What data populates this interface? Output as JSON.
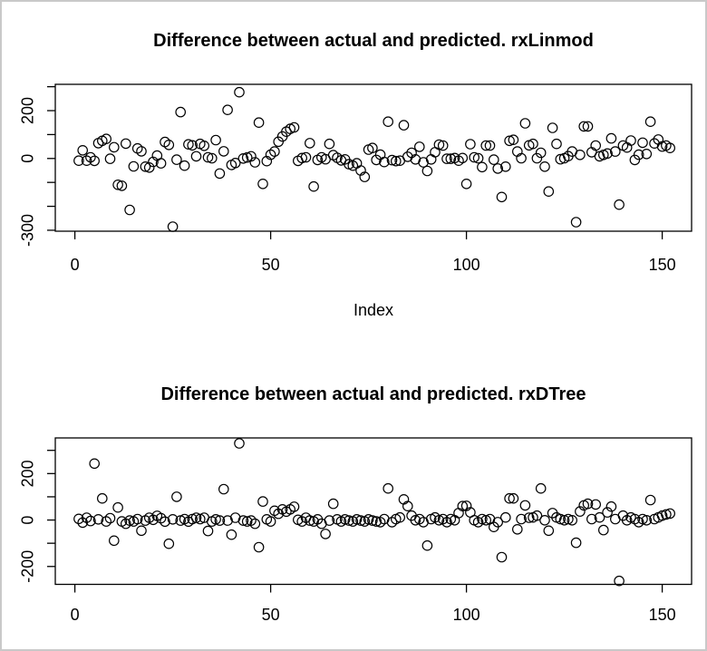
{
  "page": {
    "background_color": "#ffffff",
    "frame_border_color": "#c9c9c9",
    "point_color": "#000000",
    "axis_color": "#000000"
  },
  "chart_data": [
    {
      "type": "scatter",
      "title": "Difference between actual and predicted. rxLinmod",
      "xlabel": "Index",
      "ylabel": "",
      "marker": "open-circle",
      "grid": false,
      "legend": null,
      "xlim": [
        -5,
        157.5
      ],
      "ylim": [
        -304,
        310
      ],
      "x_tick_values": [
        0,
        50,
        100,
        150
      ],
      "x_tick_labels": [
        "0",
        "50",
        "100",
        "150"
      ],
      "y_tick_values": [
        300,
        200,
        100,
        0,
        -100,
        -200,
        -300
      ],
      "y_tick_labels": [
        "",
        "200",
        "",
        "0",
        "",
        "",
        "-300"
      ],
      "points": [
        [
          1,
          -9
        ],
        [
          2,
          34
        ],
        [
          3,
          -9
        ],
        [
          4,
          5
        ],
        [
          5,
          -10
        ],
        [
          6,
          64
        ],
        [
          7,
          74
        ],
        [
          8,
          82
        ],
        [
          9,
          -1
        ],
        [
          10,
          47
        ],
        [
          11,
          -110
        ],
        [
          12,
          -114
        ],
        [
          13,
          62
        ],
        [
          14,
          -215
        ],
        [
          15,
          -33
        ],
        [
          16,
          42
        ],
        [
          17,
          30
        ],
        [
          18,
          -34
        ],
        [
          19,
          -38
        ],
        [
          20,
          -14
        ],
        [
          21,
          12
        ],
        [
          22,
          -20
        ],
        [
          23,
          69
        ],
        [
          24,
          57
        ],
        [
          25,
          -285
        ],
        [
          26,
          -5
        ],
        [
          27,
          194
        ],
        [
          28,
          -30
        ],
        [
          29,
          59
        ],
        [
          30,
          55
        ],
        [
          31,
          9
        ],
        [
          32,
          61
        ],
        [
          33,
          53
        ],
        [
          34,
          5
        ],
        [
          35,
          1
        ],
        [
          36,
          77
        ],
        [
          37,
          -63
        ],
        [
          38,
          30
        ],
        [
          39,
          203
        ],
        [
          40,
          -27
        ],
        [
          41,
          -19
        ],
        [
          42,
          277
        ],
        [
          43,
          0
        ],
        [
          44,
          4
        ],
        [
          45,
          9
        ],
        [
          46,
          -16
        ],
        [
          47,
          150
        ],
        [
          48,
          -106
        ],
        [
          49,
          -11
        ],
        [
          50,
          16
        ],
        [
          51,
          29
        ],
        [
          52,
          70
        ],
        [
          53,
          92
        ],
        [
          54,
          112
        ],
        [
          55,
          124
        ],
        [
          56,
          130
        ],
        [
          57,
          -10
        ],
        [
          58,
          2
        ],
        [
          59,
          5
        ],
        [
          60,
          64
        ],
        [
          61,
          -117
        ],
        [
          62,
          -6
        ],
        [
          63,
          5
        ],
        [
          64,
          -3
        ],
        [
          65,
          61
        ],
        [
          66,
          14
        ],
        [
          67,
          3
        ],
        [
          68,
          -8
        ],
        [
          69,
          -4
        ],
        [
          70,
          -24
        ],
        [
          71,
          -30
        ],
        [
          72,
          -20
        ],
        [
          73,
          -50
        ],
        [
          74,
          -77
        ],
        [
          75,
          37
        ],
        [
          76,
          44
        ],
        [
          77,
          -6
        ],
        [
          78,
          16
        ],
        [
          79,
          -15
        ],
        [
          80,
          154
        ],
        [
          81,
          -7
        ],
        [
          82,
          -11
        ],
        [
          83,
          -9
        ],
        [
          84,
          139
        ],
        [
          85,
          7
        ],
        [
          86,
          24
        ],
        [
          87,
          -4
        ],
        [
          88,
          49
        ],
        [
          89,
          -16
        ],
        [
          90,
          -52
        ],
        [
          91,
          -4
        ],
        [
          92,
          26
        ],
        [
          93,
          58
        ],
        [
          94,
          54
        ],
        [
          95,
          -1
        ],
        [
          96,
          -1
        ],
        [
          97,
          2
        ],
        [
          98,
          -9
        ],
        [
          99,
          2
        ],
        [
          100,
          -106
        ],
        [
          101,
          60
        ],
        [
          102,
          5
        ],
        [
          103,
          1
        ],
        [
          104,
          -36
        ],
        [
          105,
          54
        ],
        [
          106,
          54
        ],
        [
          107,
          -5
        ],
        [
          108,
          -42
        ],
        [
          109,
          -161
        ],
        [
          110,
          -34
        ],
        [
          111,
          74
        ],
        [
          112,
          78
        ],
        [
          113,
          29
        ],
        [
          114,
          1
        ],
        [
          115,
          147
        ],
        [
          116,
          55
        ],
        [
          117,
          61
        ],
        [
          118,
          1
        ],
        [
          119,
          24
        ],
        [
          120,
          -34
        ],
        [
          121,
          -138
        ],
        [
          122,
          128
        ],
        [
          123,
          61
        ],
        [
          124,
          -3
        ],
        [
          125,
          1
        ],
        [
          126,
          10
        ],
        [
          127,
          29
        ],
        [
          128,
          -266
        ],
        [
          129,
          15
        ],
        [
          130,
          134
        ],
        [
          131,
          134
        ],
        [
          132,
          26
        ],
        [
          133,
          54
        ],
        [
          134,
          9
        ],
        [
          135,
          15
        ],
        [
          136,
          21
        ],
        [
          137,
          84
        ],
        [
          138,
          29
        ],
        [
          139,
          -193
        ],
        [
          140,
          54
        ],
        [
          141,
          46
        ],
        [
          142,
          75
        ],
        [
          143,
          -6
        ],
        [
          144,
          16
        ],
        [
          145,
          66
        ],
        [
          146,
          19
        ],
        [
          147,
          154
        ],
        [
          148,
          63
        ],
        [
          149,
          79
        ],
        [
          150,
          50
        ],
        [
          151,
          54
        ],
        [
          152,
          44
        ]
      ]
    },
    {
      "type": "scatter",
      "title": "Difference between actual and predicted. rxDTree",
      "xlabel": "",
      "ylabel": "",
      "marker": "open-circle",
      "grid": false,
      "legend": null,
      "xlim": [
        -5,
        157.5
      ],
      "ylim": [
        -277,
        353.5
      ],
      "x_tick_values": [
        0,
        50,
        100,
        150
      ],
      "x_tick_labels": [
        "0",
        "50",
        "100",
        "150"
      ],
      "y_tick_values": [
        300,
        200,
        100,
        0,
        -100,
        -200
      ],
      "y_tick_labels": [
        "",
        "200",
        "",
        "0",
        "",
        "-200"
      ],
      "points": [
        [
          1,
          5
        ],
        [
          2,
          -11
        ],
        [
          3,
          10
        ],
        [
          4,
          -4
        ],
        [
          5,
          243
        ],
        [
          6,
          3
        ],
        [
          7,
          93
        ],
        [
          8,
          -6
        ],
        [
          9,
          8
        ],
        [
          10,
          -89
        ],
        [
          11,
          54
        ],
        [
          12,
          -6
        ],
        [
          13,
          -16
        ],
        [
          14,
          -2
        ],
        [
          15,
          -6
        ],
        [
          16,
          4
        ],
        [
          17,
          -46
        ],
        [
          18,
          -2
        ],
        [
          19,
          10
        ],
        [
          20,
          1
        ],
        [
          21,
          18
        ],
        [
          22,
          8
        ],
        [
          23,
          -7
        ],
        [
          24,
          -102
        ],
        [
          25,
          3
        ],
        [
          26,
          100
        ],
        [
          27,
          -2
        ],
        [
          28,
          4
        ],
        [
          29,
          -7
        ],
        [
          30,
          4
        ],
        [
          31,
          10
        ],
        [
          32,
          4
        ],
        [
          33,
          10
        ],
        [
          34,
          -47
        ],
        [
          35,
          -6
        ],
        [
          36,
          3
        ],
        [
          37,
          -2
        ],
        [
          38,
          133
        ],
        [
          39,
          -2
        ],
        [
          40,
          -63
        ],
        [
          41,
          10
        ],
        [
          42,
          330
        ],
        [
          43,
          -2
        ],
        [
          44,
          -6
        ],
        [
          45,
          -2
        ],
        [
          46,
          -16
        ],
        [
          47,
          -117
        ],
        [
          48,
          80
        ],
        [
          49,
          3
        ],
        [
          50,
          -6
        ],
        [
          51,
          40
        ],
        [
          52,
          27
        ],
        [
          53,
          46
        ],
        [
          54,
          36
        ],
        [
          55,
          46
        ],
        [
          56,
          57
        ],
        [
          57,
          1
        ],
        [
          58,
          -6
        ],
        [
          59,
          10
        ],
        [
          60,
          -2
        ],
        [
          61,
          -6
        ],
        [
          62,
          3
        ],
        [
          63,
          -16
        ],
        [
          64,
          -60
        ],
        [
          65,
          -2
        ],
        [
          66,
          70
        ],
        [
          67,
          3
        ],
        [
          68,
          -6
        ],
        [
          69,
          3
        ],
        [
          70,
          -2
        ],
        [
          71,
          -6
        ],
        [
          72,
          3
        ],
        [
          73,
          -2
        ],
        [
          74,
          -6
        ],
        [
          75,
          3
        ],
        [
          76,
          -2
        ],
        [
          77,
          -6
        ],
        [
          78,
          -9
        ],
        [
          79,
          4
        ],
        [
          80,
          136
        ],
        [
          81,
          -9
        ],
        [
          82,
          4
        ],
        [
          83,
          11
        ],
        [
          84,
          89
        ],
        [
          85,
          60
        ],
        [
          86,
          19
        ],
        [
          87,
          -1
        ],
        [
          88,
          4
        ],
        [
          89,
          -9
        ],
        [
          90,
          -110
        ],
        [
          91,
          4
        ],
        [
          92,
          11
        ],
        [
          93,
          -1
        ],
        [
          94,
          4
        ],
        [
          95,
          -9
        ],
        [
          96,
          4
        ],
        [
          97,
          -1
        ],
        [
          98,
          30
        ],
        [
          99,
          60
        ],
        [
          100,
          61
        ],
        [
          101,
          33
        ],
        [
          102,
          -1
        ],
        [
          103,
          -9
        ],
        [
          104,
          4
        ],
        [
          105,
          -1
        ],
        [
          106,
          4
        ],
        [
          107,
          -30
        ],
        [
          108,
          -9
        ],
        [
          109,
          -160
        ],
        [
          110,
          11
        ],
        [
          111,
          93
        ],
        [
          112,
          93
        ],
        [
          113,
          -40
        ],
        [
          114,
          4
        ],
        [
          115,
          63
        ],
        [
          116,
          10
        ],
        [
          117,
          11
        ],
        [
          118,
          19
        ],
        [
          119,
          136
        ],
        [
          120,
          -1
        ],
        [
          121,
          -46
        ],
        [
          122,
          30
        ],
        [
          123,
          11
        ],
        [
          124,
          4
        ],
        [
          125,
          -1
        ],
        [
          126,
          4
        ],
        [
          127,
          -1
        ],
        [
          128,
          -98
        ],
        [
          129,
          37
        ],
        [
          130,
          63
        ],
        [
          131,
          70
        ],
        [
          132,
          4
        ],
        [
          133,
          67
        ],
        [
          134,
          11
        ],
        [
          135,
          -43
        ],
        [
          136,
          33
        ],
        [
          137,
          58
        ],
        [
          138,
          4
        ],
        [
          139,
          -262
        ],
        [
          140,
          19
        ],
        [
          141,
          -1
        ],
        [
          142,
          11
        ],
        [
          143,
          4
        ],
        [
          144,
          -9
        ],
        [
          145,
          4
        ],
        [
          146,
          -1
        ],
        [
          147,
          86
        ],
        [
          148,
          4
        ],
        [
          149,
          11
        ],
        [
          150,
          19
        ],
        [
          151,
          24
        ],
        [
          152,
          28
        ]
      ]
    }
  ]
}
